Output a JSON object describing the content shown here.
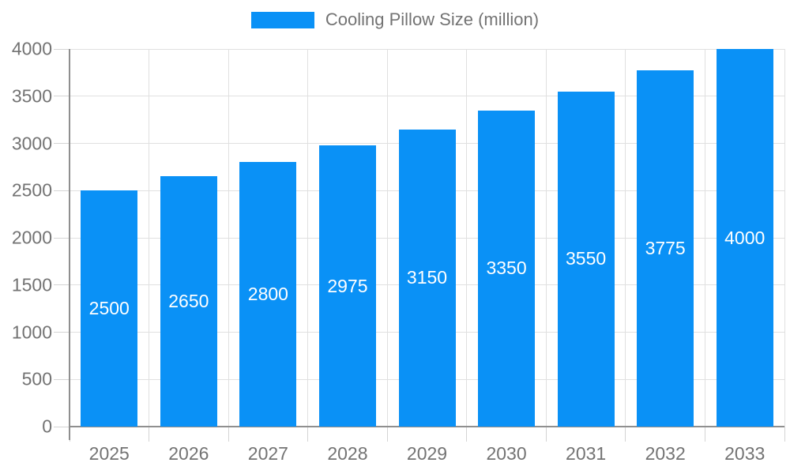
{
  "chart_data": {
    "type": "bar",
    "title": "",
    "legend": "Cooling Pillow Size (million)",
    "legend_position": "top",
    "categories": [
      "2025",
      "2026",
      "2027",
      "2028",
      "2029",
      "2030",
      "2031",
      "2032",
      "2033"
    ],
    "values": [
      2500,
      2650,
      2800,
      2975,
      3150,
      3350,
      3550,
      3775,
      4000
    ],
    "xlabel": "",
    "ylabel": "",
    "ylim": [
      0,
      4000
    ],
    "yticks": [
      0,
      500,
      1000,
      1500,
      2000,
      2500,
      3000,
      3500,
      4000
    ],
    "grid": true,
    "bar_value_labels_shown": true,
    "colors": {
      "bar": "#0A91F6",
      "bar_label_text": "#FFFFFF",
      "axis_text": "#737373",
      "legend_text": "#737373",
      "gridline": "#E0E0E0",
      "axis_line": "#8F8F8F",
      "tick": "#D4D4D4",
      "background": "#FFFFFF"
    }
  }
}
